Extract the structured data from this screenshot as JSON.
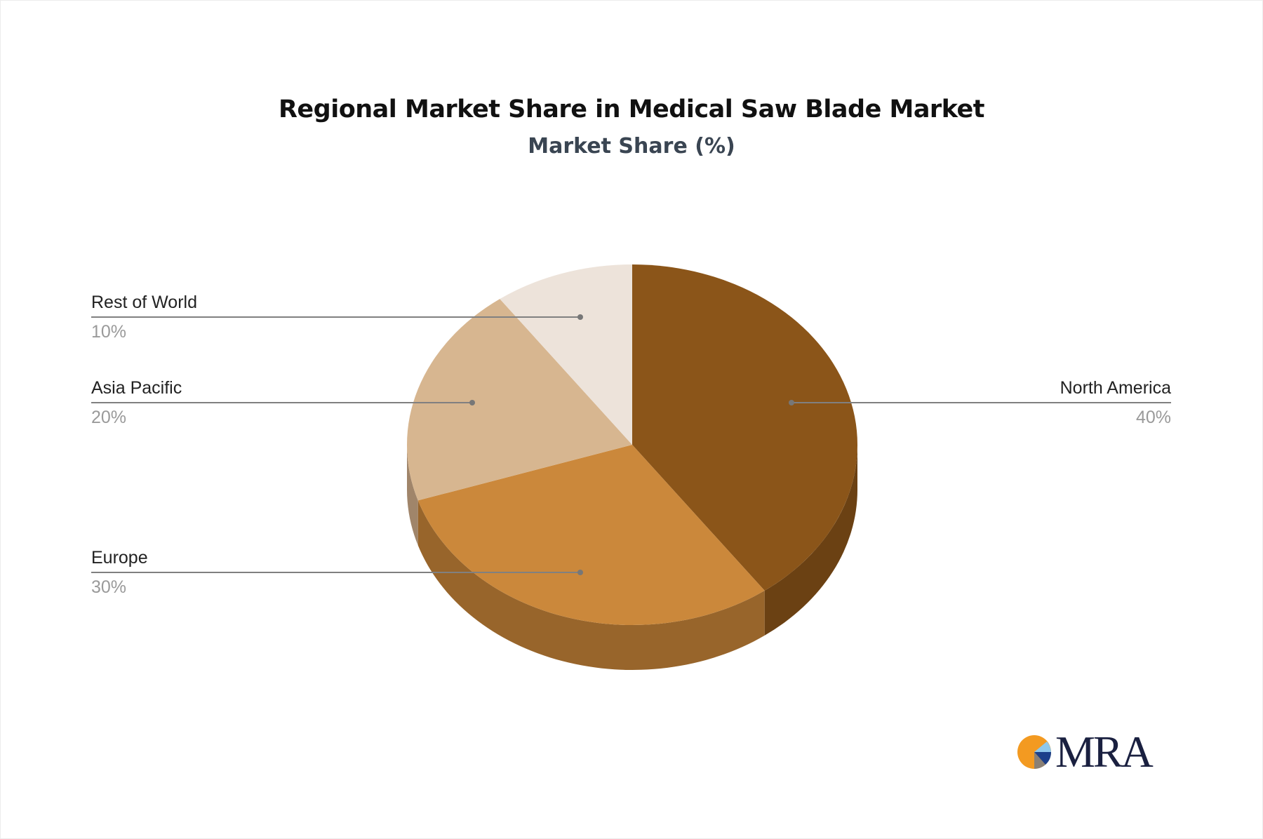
{
  "chart_data": {
    "type": "pie",
    "style": "3d",
    "title": "Regional Market Share in Medical Saw Blade Market",
    "subtitle": "Market Share (%)",
    "categories": [
      "North America",
      "Europe",
      "Asia Pacific",
      "Rest of World"
    ],
    "values": [
      40,
      30,
      20,
      10
    ],
    "value_labels": [
      "40%",
      "30%",
      "20%",
      "10%"
    ],
    "colors": [
      "#8B5519",
      "#CB883B",
      "#D7B690",
      "#EDE3DA"
    ],
    "side_colors": [
      "#6B4113",
      "#98652B",
      "#A0856A",
      "#B8AEA5"
    ],
    "legend": "leader-line labels"
  },
  "logo": {
    "text": "MRA",
    "colors": [
      "#F39A21",
      "#1B3F8A",
      "#8FC8EC",
      "#8A8075"
    ]
  }
}
